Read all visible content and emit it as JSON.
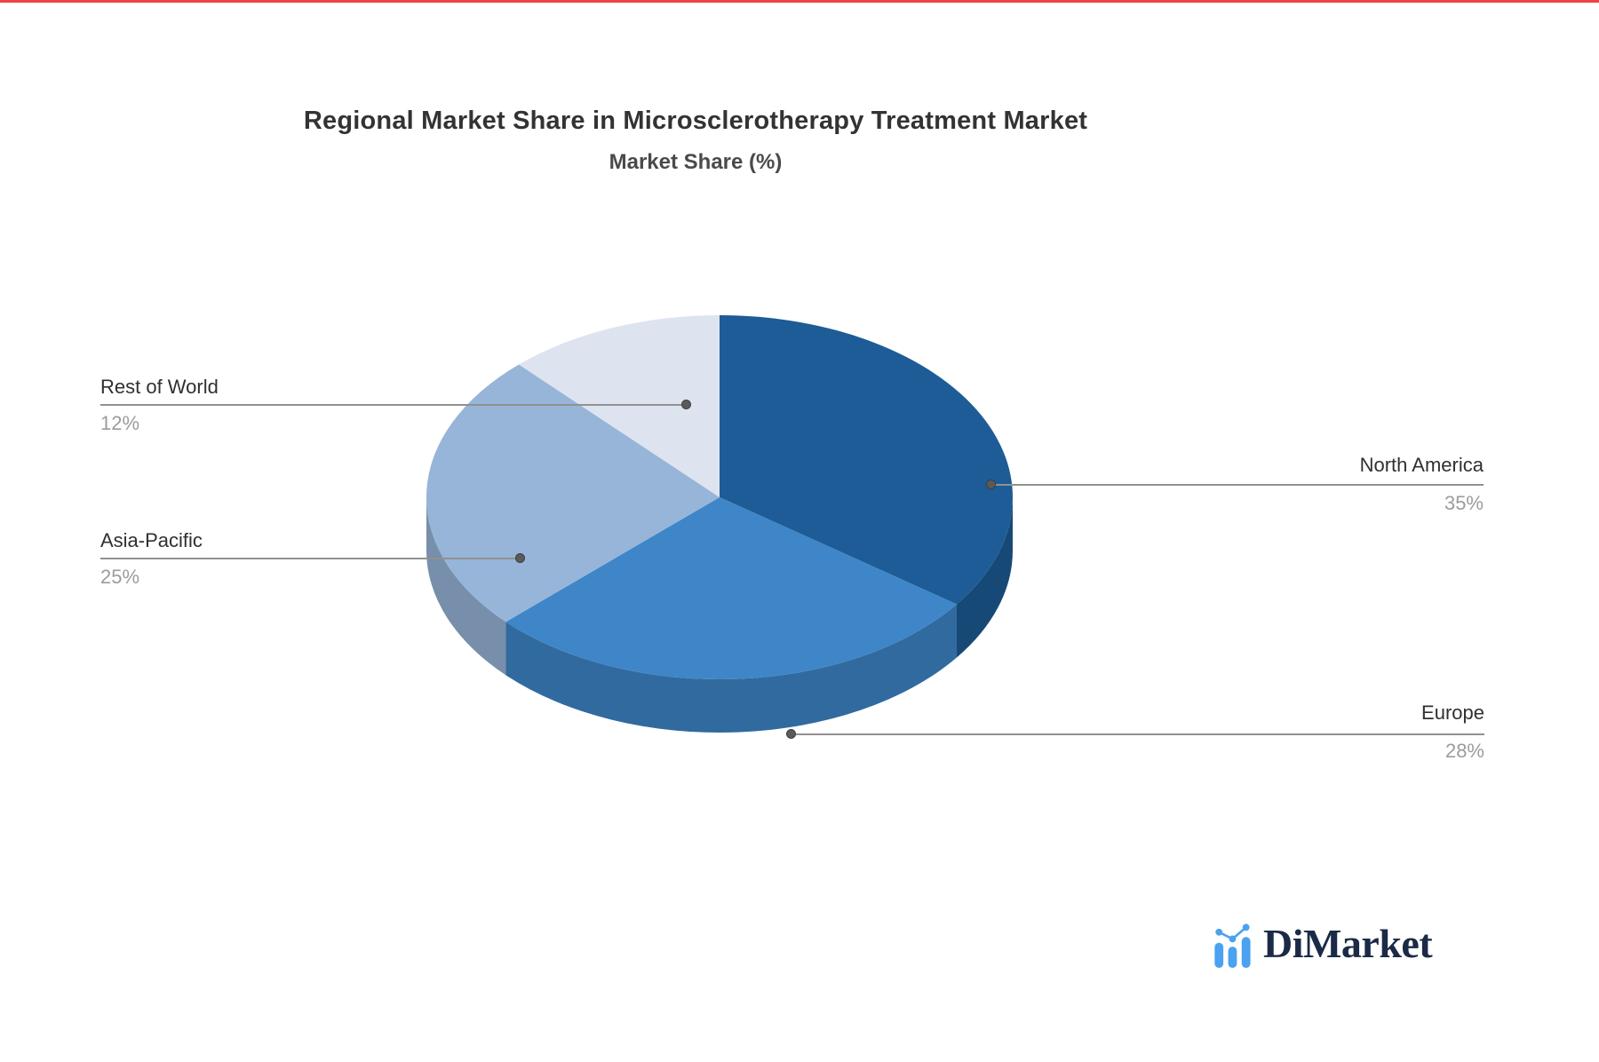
{
  "page": {
    "accent_bar_color": "#ef4444",
    "background_color": "#ffffff"
  },
  "chart_data": {
    "type": "pie",
    "style": "3d",
    "title": "Regional Market Share in Microsclerotherapy Treatment Market",
    "subtitle": "Market Share (%)",
    "labels": [
      "North America",
      "Europe",
      "Asia-Pacific",
      "Rest of World"
    ],
    "values": [
      35,
      28,
      25,
      12
    ],
    "display_values": [
      "35%",
      "28%",
      "25%",
      "12%"
    ],
    "colors": [
      "#1d5c96",
      "#3e86c8",
      "#96b5d8",
      "#dde4ef"
    ],
    "unit": "%",
    "start_angle_deg": 90,
    "direction": "clockwise",
    "legend_position": "none",
    "connector_color": "#919191",
    "label_color": "#303030",
    "value_color": "#9c9c9c"
  },
  "brand": {
    "name": "DiMarket",
    "icon": "bar-line-chart-icon",
    "icon_color": "#4aa2f0",
    "text_color": "#1b2a47"
  }
}
